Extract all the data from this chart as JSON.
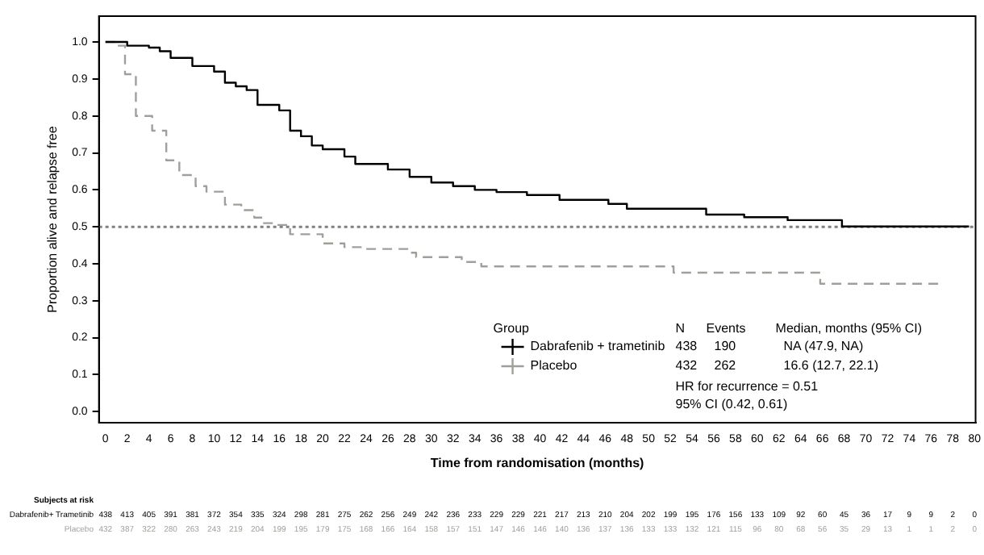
{
  "chart_data": {
    "type": "step",
    "xlabel": "Time from randomisation (months)",
    "ylabel": "Proportion alive and relapse free",
    "legend_title": "Group",
    "legend": "bottom right",
    "xlim": [
      -0.6,
      80.1
    ],
    "xticks": [
      0,
      2,
      4,
      6,
      8,
      10,
      12,
      14,
      16,
      18,
      20,
      22,
      24,
      26,
      28,
      30,
      32,
      34,
      36,
      38,
      40,
      42,
      44,
      46,
      48,
      50,
      52,
      54,
      56,
      58,
      60,
      62,
      64,
      66,
      68,
      70,
      72,
      74,
      76,
      78,
      80
    ],
    "ylim": [
      -0.03,
      1.07
    ],
    "yticks": [
      {
        "value": 0,
        "label": "0.0"
      },
      {
        "value": 0.1,
        "label": "0.1"
      },
      {
        "value": 0.2,
        "label": "0.2"
      },
      {
        "value": 0.3,
        "label": "0.3"
      },
      {
        "value": 0.4,
        "label": "0.4"
      },
      {
        "value": 0.5,
        "label": "0.5"
      },
      {
        "value": 0.6,
        "label": "0.6"
      },
      {
        "value": 0.7,
        "label": "0.7"
      },
      {
        "value": 0.8,
        "label": "0.8"
      },
      {
        "value": 0.9,
        "label": "0.9"
      },
      {
        "value": 1,
        "label": "1.0"
      }
    ],
    "grid": false,
    "series": [
      {
        "name": "Dabrafenib + trametinib",
        "color": "#000000",
        "line_style": "solid",
        "x": [
          0,
          2,
          4,
          5,
          6,
          8,
          10,
          11,
          12,
          13,
          14,
          16,
          17,
          18,
          19,
          20,
          22,
          23,
          26,
          28,
          30,
          32,
          34,
          36,
          38.8,
          41.8,
          46.3,
          48,
          55.3,
          58.8,
          62.8,
          67.8,
          79.5
        ],
        "values": [
          1.0,
          0.99,
          0.985,
          0.975,
          0.957,
          0.935,
          0.92,
          0.89,
          0.88,
          0.87,
          0.83,
          0.815,
          0.76,
          0.745,
          0.72,
          0.71,
          0.69,
          0.67,
          0.655,
          0.635,
          0.62,
          0.61,
          0.6,
          0.594,
          0.586,
          0.573,
          0.562,
          0.549,
          0.533,
          0.526,
          0.518,
          0.501,
          0.501
        ]
      },
      {
        "name": "Placebo",
        "color": "#a0a09a",
        "line_style": "dashed",
        "x": [
          0,
          1,
          1.8,
          2.8,
          4.3,
          5.6,
          6.8,
          8.3,
          9.3,
          11,
          12.5,
          13.7,
          14.5,
          15.7,
          17,
          20,
          22,
          23.5,
          27.9,
          28.6,
          32.8,
          34.6,
          52.3,
          65.8,
          76.8
        ],
        "values": [
          1.0,
          0.99,
          0.913,
          0.8,
          0.76,
          0.68,
          0.64,
          0.61,
          0.595,
          0.56,
          0.545,
          0.525,
          0.51,
          0.505,
          0.48,
          0.455,
          0.445,
          0.44,
          0.43,
          0.418,
          0.405,
          0.393,
          0.376,
          0.346,
          0.346
        ]
      }
    ],
    "ref_lines": [
      {
        "axis": "y",
        "value": 0.5,
        "color": "#808080",
        "line_style": "dotted"
      }
    ],
    "annotations": [
      "N",
      "Events",
      "Median, months (95% CI)",
      "438",
      "190",
      "NA (47.9, NA)",
      "432",
      "262",
      "16.6 (12.7, 22.1)",
      "HR for recurrence = 0.51",
      "95% CI (0.42, 0.61)",
      "Subjects at risk",
      "Dabrafenib+ Trametinib",
      "Placebo",
      "438 413 405 391 381 372 354 335 324 298 281 275 262 256 249 242 236 233 229 229 221 217 213 210 204 202 199 195 176 156 133 109 92 60 45 36 17 9 9 2 0",
      "432 387 322 280 263 243 219 204 199 195 179 175 168 166 164 158 157 151 147 146 146 140 136 137 136 133 133 132 121 115 96 80 68 56 35 29 13 1 1 2 0"
    ]
  }
}
